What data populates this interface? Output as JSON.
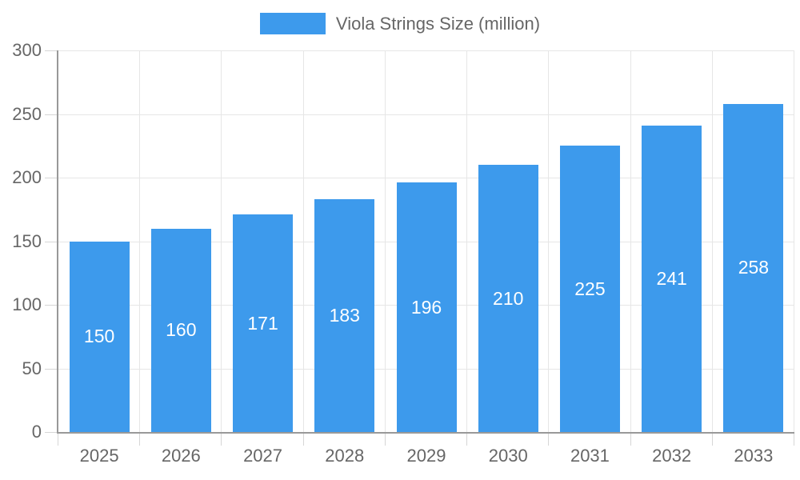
{
  "legend": {
    "label": "Viola Strings Size (million)"
  },
  "colors": {
    "bar": "#3D9AEC",
    "bar_label": "#ffffff",
    "axis": "#999999",
    "grid": "#e6e6e6",
    "tick": "#d6d6d6",
    "text": "#666666"
  },
  "chart_data": {
    "type": "bar",
    "title": "",
    "legend": "Viola Strings Size (million)",
    "categories": [
      "2025",
      "2026",
      "2027",
      "2028",
      "2029",
      "2030",
      "2031",
      "2032",
      "2033"
    ],
    "values": [
      150,
      160,
      171,
      183,
      196,
      210,
      225,
      241,
      258
    ],
    "xlabel": "",
    "ylabel": "",
    "ylim": [
      0,
      300
    ],
    "ytick_step": 50,
    "yticks": [
      0,
      50,
      100,
      150,
      200,
      250,
      300
    ],
    "grid": true,
    "legend_position": "top",
    "bar_labels": "centered-white"
  }
}
